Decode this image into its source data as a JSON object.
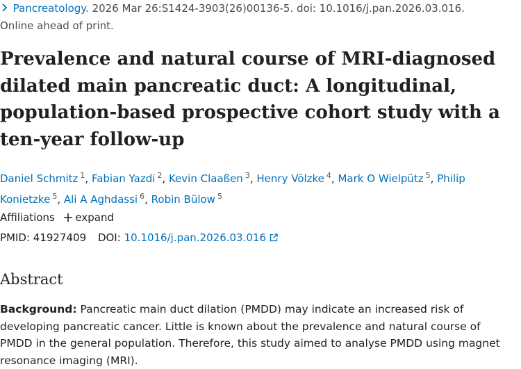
{
  "citation": {
    "journal": "Pancreatology.",
    "details": "2026 Mar 26:S1424-3903(26)00136-5. doi: 10.1016/j.pan.2026.03.016.",
    "status": "Online ahead of print."
  },
  "title": "Prevalence and natural course of MRI-diagnosed dilated main pancreatic duct: A longitudinal, population-based prospective cohort study with a ten-year follow-up",
  "authors": [
    {
      "name": "Daniel Schmitz",
      "aff": "1",
      "sep": ","
    },
    {
      "name": "Fabian Yazdi",
      "aff": "2",
      "sep": ","
    },
    {
      "name": "Kevin Claaßen",
      "aff": "3",
      "sep": ","
    },
    {
      "name": "Henry Völzke",
      "aff": "4",
      "sep": ","
    },
    {
      "name": "Mark O Wielpütz",
      "aff": "5",
      "sep": ","
    },
    {
      "name": "Philip Konietzke",
      "aff": "5",
      "sep": ","
    },
    {
      "name": "Ali A Aghdassi",
      "aff": "6",
      "sep": ","
    },
    {
      "name": "Robin Bülow",
      "aff": "5"
    }
  ],
  "affiliations": {
    "label": "Affiliations",
    "action": "expand"
  },
  "identifiers": {
    "pmid_label": "PMID:",
    "pmid": "41927409",
    "doi_label": "DOI:",
    "doi": "10.1016/j.pan.2026.03.016"
  },
  "abstract": {
    "heading": "Abstract",
    "background_label": "Background:",
    "background_text": "Pancreatic main duct dilation (PMDD) may indicate an increased risk of developing pancreatic cancer. Little is known about the prevalence and natural course of PMDD in the general population. Therefore, this study aimed to analyse PMDD using magnet resonance imaging (MRI)."
  }
}
